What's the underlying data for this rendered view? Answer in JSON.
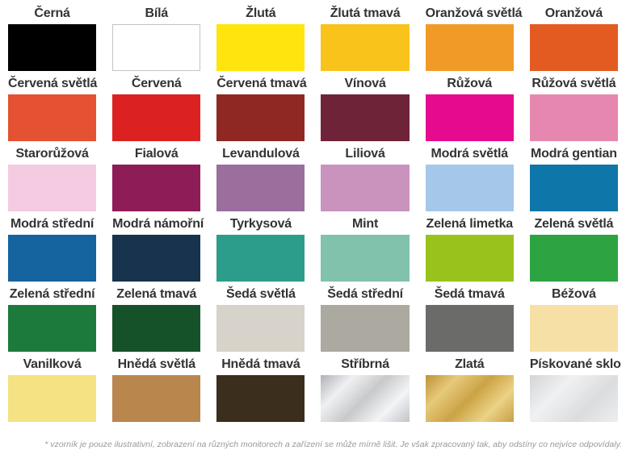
{
  "page": {
    "background": "#FFFFFF"
  },
  "chart_data": {
    "type": "table",
    "columns": 6,
    "rows": 6,
    "swatches": [
      {
        "label": "Černá",
        "type": "solid",
        "color": "#000000"
      },
      {
        "label": "Bílá",
        "type": "solid",
        "color": "#FFFFFF",
        "border": "#C4C4C4"
      },
      {
        "label": "Žlutá",
        "type": "solid",
        "color": "#FFE50D"
      },
      {
        "label": "Žlutá tmavá",
        "type": "solid",
        "color": "#F9C31B"
      },
      {
        "label": "Oranžová světlá",
        "type": "solid",
        "color": "#F19A28"
      },
      {
        "label": "Oranžová",
        "type": "solid",
        "color": "#E45B22"
      },
      {
        "label": "Červená světlá",
        "type": "solid",
        "color": "#E55231"
      },
      {
        "label": "Červená",
        "type": "solid",
        "color": "#DC2121"
      },
      {
        "label": "Červená tmavá",
        "type": "solid",
        "color": "#8F2823"
      },
      {
        "label": "Vínová",
        "type": "solid",
        "color": "#6F2339"
      },
      {
        "label": "Růžová",
        "type": "solid",
        "color": "#E60B8E"
      },
      {
        "label": "Růžová světlá",
        "type": "solid",
        "color": "#E687AF"
      },
      {
        "label": "Starorůžová",
        "type": "solid",
        "color": "#F4CBE1"
      },
      {
        "label": "Fialová",
        "type": "solid",
        "color": "#8E1C57"
      },
      {
        "label": "Levandulová",
        "type": "solid",
        "color": "#9C6E9E"
      },
      {
        "label": "Liliová",
        "type": "solid",
        "color": "#C993BE"
      },
      {
        "label": "Modrá světlá",
        "type": "solid",
        "color": "#A5C8EA"
      },
      {
        "label": "Modrá gentian",
        "type": "solid",
        "color": "#0F76A9"
      },
      {
        "label": "Modrá střední",
        "type": "solid",
        "color": "#15639F"
      },
      {
        "label": "Modrá námořní",
        "type": "solid",
        "color": "#17334E"
      },
      {
        "label": "Tyrkysová",
        "type": "solid",
        "color": "#2D9D8B"
      },
      {
        "label": "Mint",
        "type": "solid",
        "color": "#80C2AC"
      },
      {
        "label": "Zelená limetka",
        "type": "solid",
        "color": "#99C21D"
      },
      {
        "label": "Zelená světlá",
        "type": "solid",
        "color": "#2EA342"
      },
      {
        "label": "Zelená střední",
        "type": "solid",
        "color": "#1D7A3D"
      },
      {
        "label": "Zelená tmavá",
        "type": "solid",
        "color": "#155229"
      },
      {
        "label": "Šedá světlá",
        "type": "solid",
        "color": "#D7D3CA"
      },
      {
        "label": "Šedá střední",
        "type": "solid",
        "color": "#ACA9A1"
      },
      {
        "label": "Šedá tmavá",
        "type": "solid",
        "color": "#6B6B69"
      },
      {
        "label": "Béžová",
        "type": "solid",
        "color": "#F6E0A6"
      },
      {
        "label": "Vanilková",
        "type": "solid",
        "color": "#F5E282"
      },
      {
        "label": "Hnědá světlá",
        "type": "solid",
        "color": "#B9864E"
      },
      {
        "label": "Hnědá tmavá",
        "type": "solid",
        "color": "#3C2E1C"
      },
      {
        "label": "Stříbrná",
        "type": "gradient",
        "angle": 135,
        "colors": [
          "#B0B1B5",
          "#EFF0F2",
          "#C8C9CB",
          "#F3F4F6",
          "#C2C3C7"
        ]
      },
      {
        "label": "Zlatá",
        "type": "gradient",
        "angle": 135,
        "colors": [
          "#C09238",
          "#E6C97A",
          "#CBA345",
          "#EBD286",
          "#C89E42"
        ]
      },
      {
        "label": "Pískované sklo",
        "type": "gradient",
        "angle": 135,
        "colors": [
          "#D3D4D6",
          "#F0F1F3",
          "#DBDCDE",
          "#EDEEF0"
        ]
      }
    ]
  },
  "footer": {
    "note": "* vzorník je pouze ilustrativní, zobrazení na různých monitorech a zařízení se může mírně lišit. Je však zpracovaný tak, aby odstíny co nejvíce odpovídaly."
  }
}
